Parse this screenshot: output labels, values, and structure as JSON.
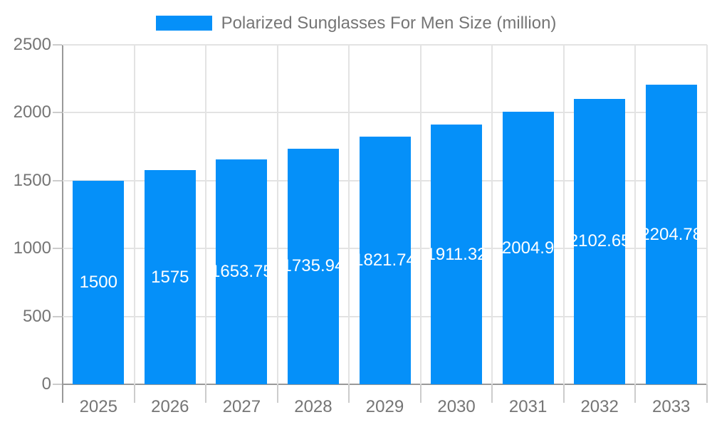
{
  "chart_data": {
    "type": "bar",
    "title": "Polarized Sunglasses For Men Size (million)",
    "categories": [
      "2025",
      "2026",
      "2027",
      "2028",
      "2029",
      "2030",
      "2031",
      "2032",
      "2033"
    ],
    "values": [
      1500,
      1575,
      1653.75,
      1735.94,
      1821.74,
      1911.32,
      2004.9,
      2102.65,
      2204.78
    ],
    "bar_labels": [
      "1500",
      "1575",
      "1653.75",
      "1735.94",
      "1821.74",
      "1911.32",
      "2004.9",
      "2102.65",
      "2204.78"
    ],
    "xlabel": "",
    "ylabel": "",
    "ylim": [
      0,
      2500
    ],
    "yticks": [
      0,
      500,
      1000,
      1500,
      2000,
      2500
    ],
    "grid": true,
    "legend_position": "top-center",
    "colors": {
      "bar": "#0590f9",
      "bar_label_text": "#ffffff",
      "axis_text": "#757575",
      "gridline": "#e3e3e3",
      "axis_line": "#999999",
      "tick_mark": "#cccccc",
      "background": "#ffffff"
    }
  }
}
